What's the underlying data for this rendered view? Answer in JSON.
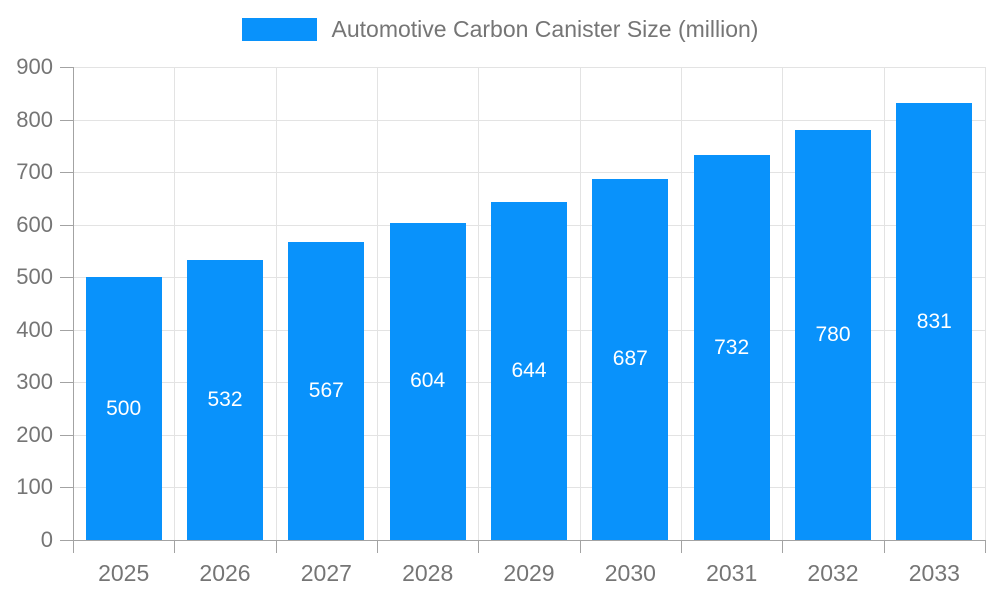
{
  "chart_data": {
    "type": "bar",
    "title": "Automotive Carbon Canister Size (million)",
    "categories": [
      "2025",
      "2026",
      "2027",
      "2028",
      "2029",
      "2030",
      "2031",
      "2032",
      "2033"
    ],
    "series": [
      {
        "name": "Automotive Carbon Canister Size (million)",
        "values": [
          500,
          532,
          567,
          604,
          644,
          687,
          732,
          780,
          831
        ]
      }
    ],
    "xlabel": "",
    "ylabel": "",
    "ylim": [
      0,
      900
    ],
    "yticks": [
      0,
      100,
      200,
      300,
      400,
      500,
      600,
      700,
      800,
      900
    ],
    "grid": true,
    "legend_position": "top",
    "value_label_position": "inside-center",
    "colors": {
      "bar": "#0992FB",
      "grid_line": "#E3E3E3",
      "axis_line": "#A3A3A3",
      "tick_label": "#757575",
      "value_label": "#FFFFFF",
      "background": "#FFFFFF"
    }
  },
  "legend": {
    "label": "Automotive Carbon Canister Size (million)"
  }
}
